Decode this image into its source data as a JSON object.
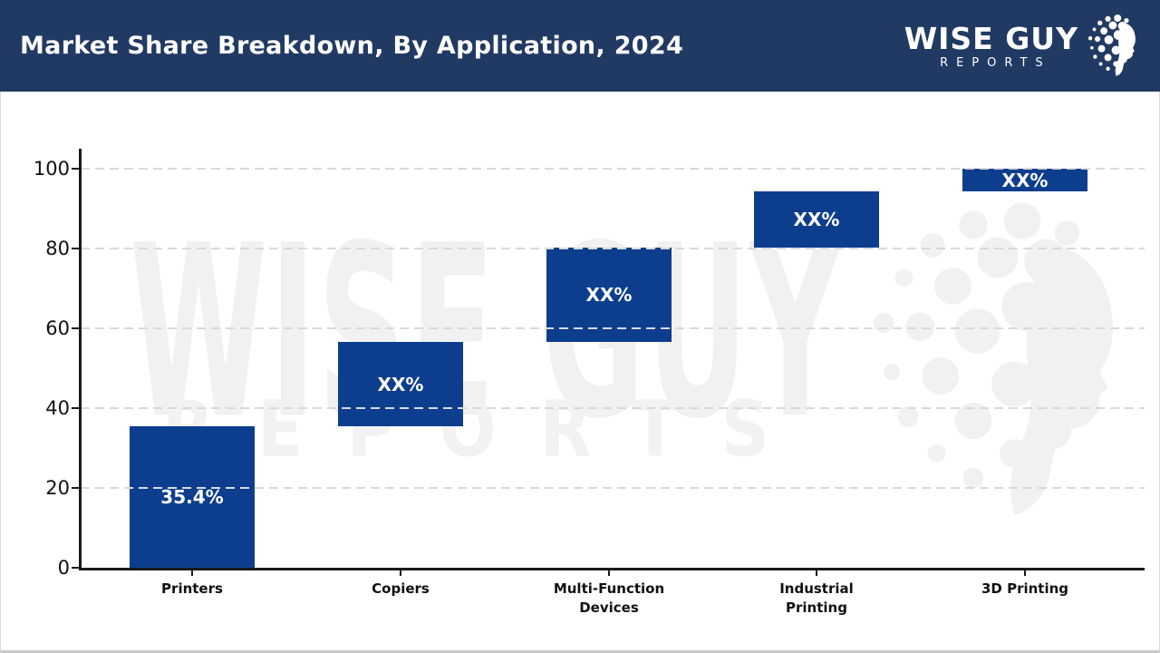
{
  "header": {
    "title": "Market Share Breakdown, By Application, 2024",
    "logo": {
      "name": "WISE GUY",
      "subname": "REPORTS"
    }
  },
  "watermark": {
    "name": "WISE GUY",
    "subname": "REPORTS"
  },
  "colors": {
    "header_bg": "#213a64",
    "bar_fill": "#0d3e8e",
    "bar_label_text": "#ffffff",
    "grid_line": "#d9d9d9",
    "axis_line": "#1a1a1a",
    "tick_text": "#111111",
    "category_text": "#111111",
    "watermark_gray": "#f1f1f1",
    "page_border": "#c9c9c9"
  },
  "chart_data": {
    "type": "bar",
    "subtype": "waterfall",
    "title": "Market Share Breakdown, By Application, 2024",
    "xlabel": "",
    "ylabel": "",
    "ylim": [
      0,
      105
    ],
    "y_ticks": [
      0,
      20,
      40,
      60,
      80,
      100
    ],
    "grid": "horizontal-dashed",
    "legend": "none",
    "categories": [
      "Printers",
      "Copiers",
      "Multi-Function Devices",
      "Industrial Printing",
      "3D Printing"
    ],
    "category_label_lines": [
      [
        "Printers"
      ],
      [
        "Copiers"
      ],
      [
        "Multi-Function",
        "Devices"
      ],
      [
        "Industrial",
        "Printing"
      ],
      [
        "3D Printing"
      ]
    ],
    "segments": [
      {
        "category": "Printers",
        "slug": "printers",
        "start": 0,
        "end": 35.4,
        "label": "35.4%"
      },
      {
        "category": "Copiers",
        "slug": "copiers",
        "start": 35.4,
        "end": 56.6,
        "label": "XX%"
      },
      {
        "category": "Multi-Function Devices",
        "slug": "multi-function-devices",
        "start": 56.6,
        "end": 80.2,
        "label": "XX%"
      },
      {
        "category": "Industrial Printing",
        "slug": "industrial-printing",
        "start": 80.2,
        "end": 94.3,
        "label": "XX%"
      },
      {
        "category": "3D Printing",
        "slug": "3d-printing",
        "start": 94.3,
        "end": 100,
        "label": "XX%"
      }
    ]
  }
}
